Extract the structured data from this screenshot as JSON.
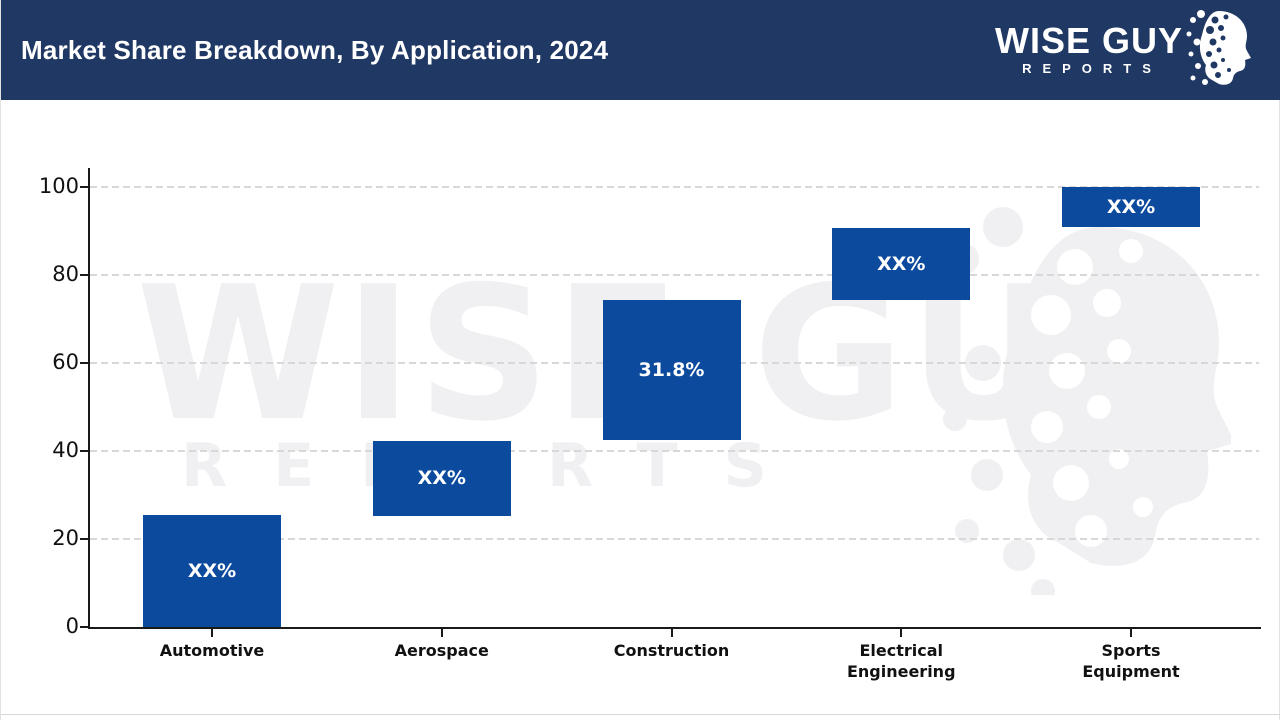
{
  "header": {
    "title": "Market Share Breakdown, By Application, 2024",
    "bg_color": "#1f3864",
    "logo": {
      "line1": "WISE GUY",
      "line2": "REPORTS"
    }
  },
  "watermark": {
    "line1": "WISE GUY",
    "line2": "REPORTS"
  },
  "chart_data": {
    "type": "bar",
    "subtype": "waterfall-floating-bars",
    "title": "Market Share Breakdown, By Application, 2024",
    "xlabel": "",
    "ylabel": "",
    "categories": [
      "Automotive",
      "Aerospace",
      "Construction",
      "Electrical Engineering",
      "Sports Equipment"
    ],
    "bars": [
      {
        "category": "Automotive",
        "start": 0,
        "end": 25.5,
        "label": "XX%"
      },
      {
        "category": "Aerospace",
        "start": 25.3,
        "end": 42.3,
        "label": "XX%"
      },
      {
        "category": "Construction",
        "start": 42.5,
        "end": 74.3,
        "label": "31.8%"
      },
      {
        "category": "Electrical Engineering",
        "start": 74.4,
        "end": 90.7,
        "label": "XX%"
      },
      {
        "category": "Sports Equipment",
        "start": 90.8,
        "end": 100,
        "label": "XX%"
      }
    ],
    "yticks": [
      0,
      20,
      40,
      60,
      80,
      100
    ],
    "ylim": [
      0,
      104
    ],
    "grid": "horizontal dashed",
    "legend": "none",
    "bar_color": "#0c4a9e",
    "bar_label_color": "#ffffff",
    "axis_color": "#1a1a1a",
    "gridline_color": "#d8d8d8"
  }
}
